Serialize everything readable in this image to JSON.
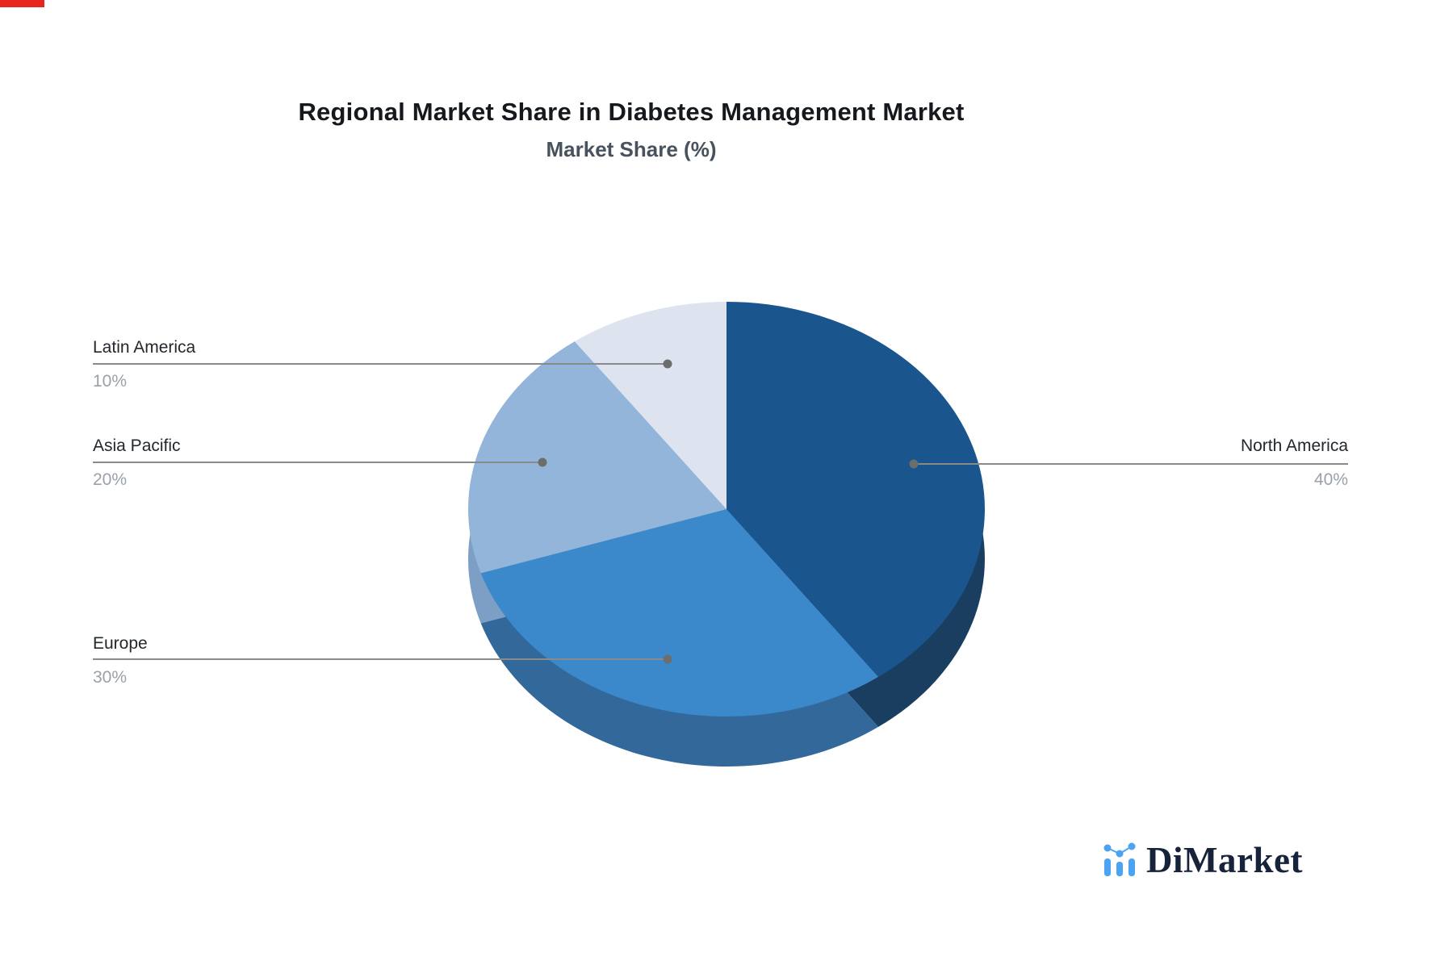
{
  "title": "Regional Market Share in Diabetes Management Market",
  "subtitle": "Market Share (%)",
  "brand": {
    "name": "DiMarket",
    "icon": "bar-line-chart-icon",
    "icon_color": "#4da3f3",
    "text_color": "#16233b"
  },
  "misc": {
    "background_color": "#ffffff",
    "top_left_marker_color": "#e8251f",
    "callout_line_color": "#8a8a8a",
    "callout_dot_color": "#6d6d6d"
  },
  "chart_data": {
    "type": "pie",
    "title": "Regional Market Share in Diabetes Management Market",
    "subtitle": "Market Share (%)",
    "unit": "%",
    "effect": "3d",
    "start_angle_deg": 0,
    "direction": "clockwise",
    "legend_position": "callout-labels",
    "slices": [
      {
        "label": "North America",
        "value": 40,
        "display": "40%",
        "color": "#1A568D",
        "side_color": "#1A3E60",
        "label_side": "right"
      },
      {
        "label": "Europe",
        "value": 30,
        "display": "30%",
        "color": "#3B89CB",
        "side_color": "#33689B",
        "label_side": "left"
      },
      {
        "label": "Asia Pacific",
        "value": 20,
        "display": "20%",
        "color": "#92B5D9",
        "side_color": "#7D9FC5",
        "label_side": "left"
      },
      {
        "label": "Latin America",
        "value": 10,
        "display": "10%",
        "color": "#DEE4EF",
        "side_color": "#C3CDDD",
        "label_side": "left"
      }
    ]
  }
}
